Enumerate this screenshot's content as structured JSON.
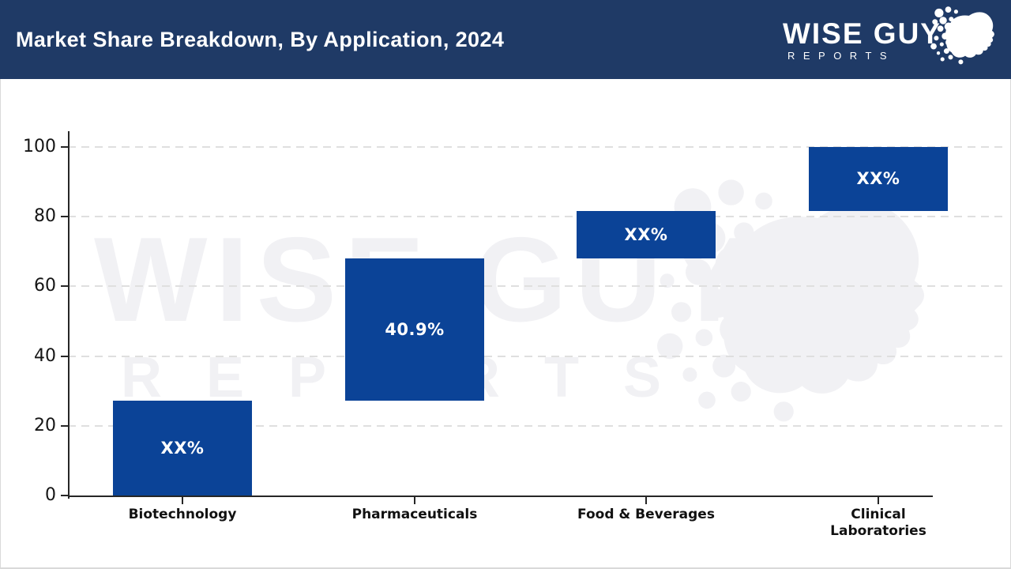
{
  "header": {
    "title": "Market Share Breakdown, By Application, 2024",
    "logo": {
      "wordmark": "WISE GUY",
      "sub": "REPORTS"
    }
  },
  "watermark": {
    "wordmark": "WISE GUY",
    "sub": "REPORTS"
  },
  "chart_data": {
    "type": "bar",
    "subtype": "waterfall-breakdown",
    "title": "Market Share Breakdown, By Application, 2024",
    "categories": [
      "Biotechnology",
      "Pharmaceuticals",
      "Food & Beverages",
      "Clinical Laboratories"
    ],
    "bar_labels": [
      "XX%",
      "40.9%",
      "XX%",
      "XX%"
    ],
    "values": [
      27.2,
      40.9,
      13.6,
      18.3
    ],
    "segments": [
      {
        "start": 0,
        "end": 27.2
      },
      {
        "start": 27.2,
        "end": 68.1
      },
      {
        "start": 68.1,
        "end": 81.7
      },
      {
        "start": 81.7,
        "end": 100
      }
    ],
    "xlabel": "",
    "ylabel": "",
    "ylim": [
      0,
      100
    ],
    "yticks": [
      0,
      20,
      40,
      60,
      80,
      100
    ],
    "grid": "dashed-horizontal",
    "legend": "none"
  },
  "colors": {
    "header_bg": "#1f3a66",
    "bar": "#0b4397",
    "grid": "#dfdfdf",
    "axis": "#262626",
    "watermark": "#f1f1f4",
    "bar_label_text": "#ffffff",
    "tick_text": "#151515"
  }
}
